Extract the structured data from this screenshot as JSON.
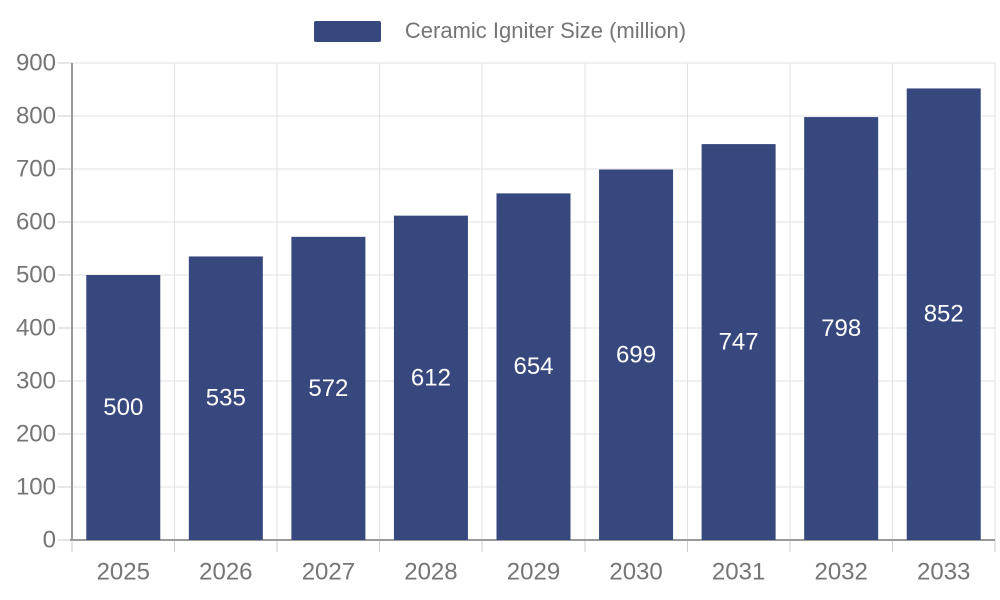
{
  "legend": {
    "items": [
      {
        "label": "Ceramic Igniter Size (million)",
        "color": "#36487E"
      }
    ],
    "position": "top-center"
  },
  "chart_data": {
    "type": "bar",
    "title": "",
    "series_name": "Ceramic Igniter Size (million)",
    "categories": [
      "2025",
      "2026",
      "2027",
      "2028",
      "2029",
      "2030",
      "2031",
      "2032",
      "2033"
    ],
    "values": [
      500,
      535,
      572,
      612,
      654,
      699,
      747,
      798,
      852
    ],
    "xlabel": "",
    "ylabel": "",
    "ylim": [
      0,
      900
    ],
    "yticks": [
      0,
      100,
      200,
      300,
      400,
      500,
      600,
      700,
      800,
      900
    ],
    "grid": true,
    "bar_labels_inside": true,
    "legend_position": "top",
    "colors": {
      "bar": "#36487E",
      "bar_label": "#ffffff",
      "axis_text": "#757575",
      "gridline": "#e2e2e2",
      "tick": "#cccccc",
      "axis_line": "#999999",
      "background": "#ffffff"
    }
  }
}
